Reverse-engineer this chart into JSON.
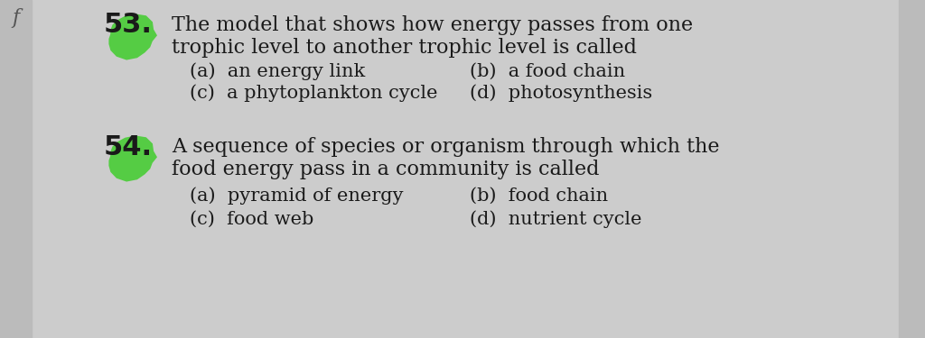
{
  "background_color": "#cccccc",
  "text_color": "#1a1a1a",
  "number_color": "#1a1a1a",
  "green_color": "#55cc44",
  "q1_number": "53.",
  "q1_line1": "The model that shows how energy passes from one",
  "q1_line2": "trophic level to another trophic level is called",
  "q1_a": "(a)  an energy link",
  "q1_b": "(b)  a food chain",
  "q1_c": "(c)  a phytoplankton cycle",
  "q1_d": "(d)  photosynthesis",
  "q2_number": "54.",
  "q2_line1": "A sequence of species or organism through which the",
  "q2_line2": "food energy pass in a community is called",
  "q2_a": "(a)  pyramid of energy",
  "q2_b": "(b)  food chain",
  "q2_c": "(c)  food web",
  "q2_d": "(d)  nutrient cycle",
  "font_size_question": 16,
  "font_size_options": 15,
  "font_size_number": 22,
  "font_size_f": 16
}
